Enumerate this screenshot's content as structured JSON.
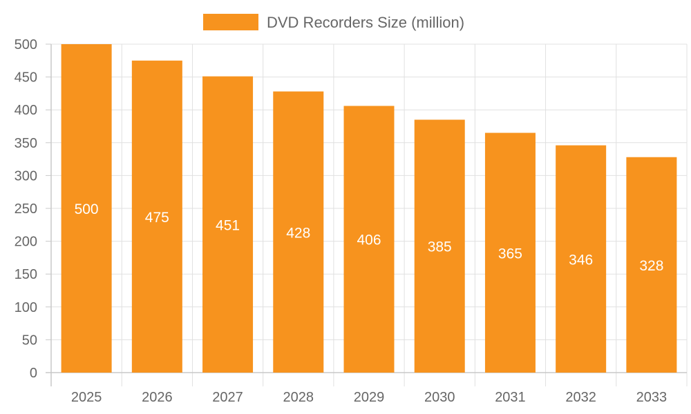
{
  "chart_data": {
    "type": "bar",
    "categories": [
      "2025",
      "2026",
      "2027",
      "2028",
      "2029",
      "2030",
      "2031",
      "2032",
      "2033"
    ],
    "series": [
      {
        "name": "DVD Recorders Size (million)",
        "values": [
          500,
          475,
          451,
          428,
          406,
          385,
          365,
          346,
          328
        ],
        "color": "#f7931e"
      }
    ],
    "ylim": [
      0,
      500
    ],
    "yticks": [
      0,
      50,
      100,
      150,
      200,
      250,
      300,
      350,
      400,
      450,
      500
    ],
    "grid": true,
    "legend_position": "top-center",
    "data_labels": true
  }
}
